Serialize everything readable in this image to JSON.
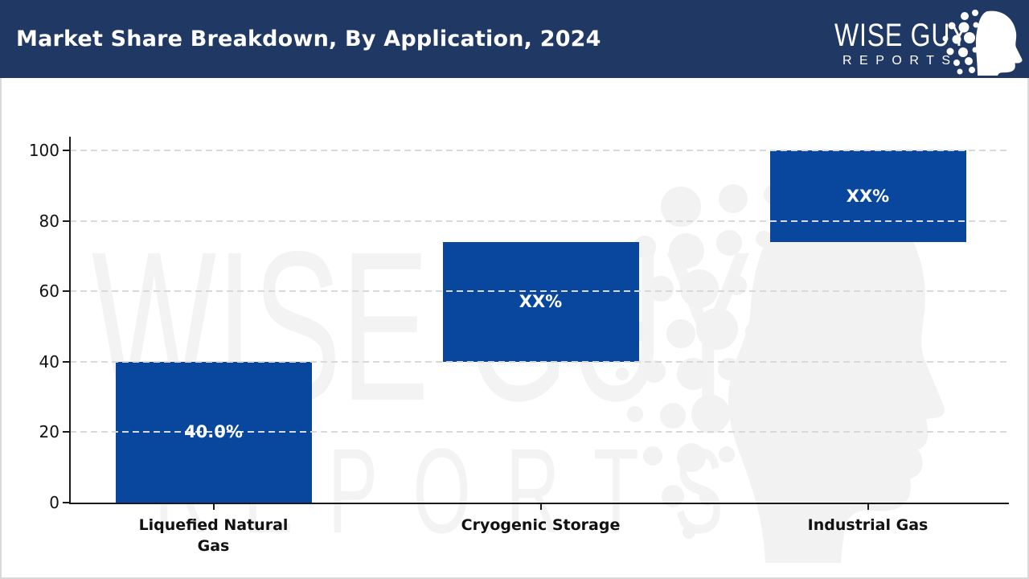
{
  "header": {
    "title": "Market Share Breakdown, By Application, 2024",
    "bg_color": "#1f3864",
    "logo": {
      "wordmark": "WISE GUY",
      "subtext": "REPORTS"
    }
  },
  "watermark": {
    "wordmark": "WISE GUY",
    "subtext": "REPORTS"
  },
  "chart_data": {
    "type": "bar",
    "subtype": "floating-waterfall",
    "title": "Market Share Breakdown, By Application, 2024",
    "categories": [
      "Liquefied Natural Gas",
      "Cryogenic Storage",
      "Industrial Gas"
    ],
    "series": [
      {
        "name": "Market share (%)",
        "segments": [
          {
            "category": "Liquefied Natural Gas",
            "start": 0,
            "end": 40,
            "label": "40.0%"
          },
          {
            "category": "Cryogenic Storage",
            "start": 40,
            "end": 74,
            "label": "XX%"
          },
          {
            "category": "Industrial Gas",
            "start": 74,
            "end": 100,
            "label": "XX%"
          }
        ]
      }
    ],
    "ylim": [
      0,
      100
    ],
    "yticks": [
      0,
      20,
      40,
      60,
      80,
      100
    ],
    "grid": {
      "horizontal": true,
      "style": "dashed",
      "color": "#d9d9d9"
    },
    "legend": "none",
    "bar_color": "#09479e",
    "bar_label_color": "#ffffff",
    "axis_color": "#1a1a1a"
  }
}
